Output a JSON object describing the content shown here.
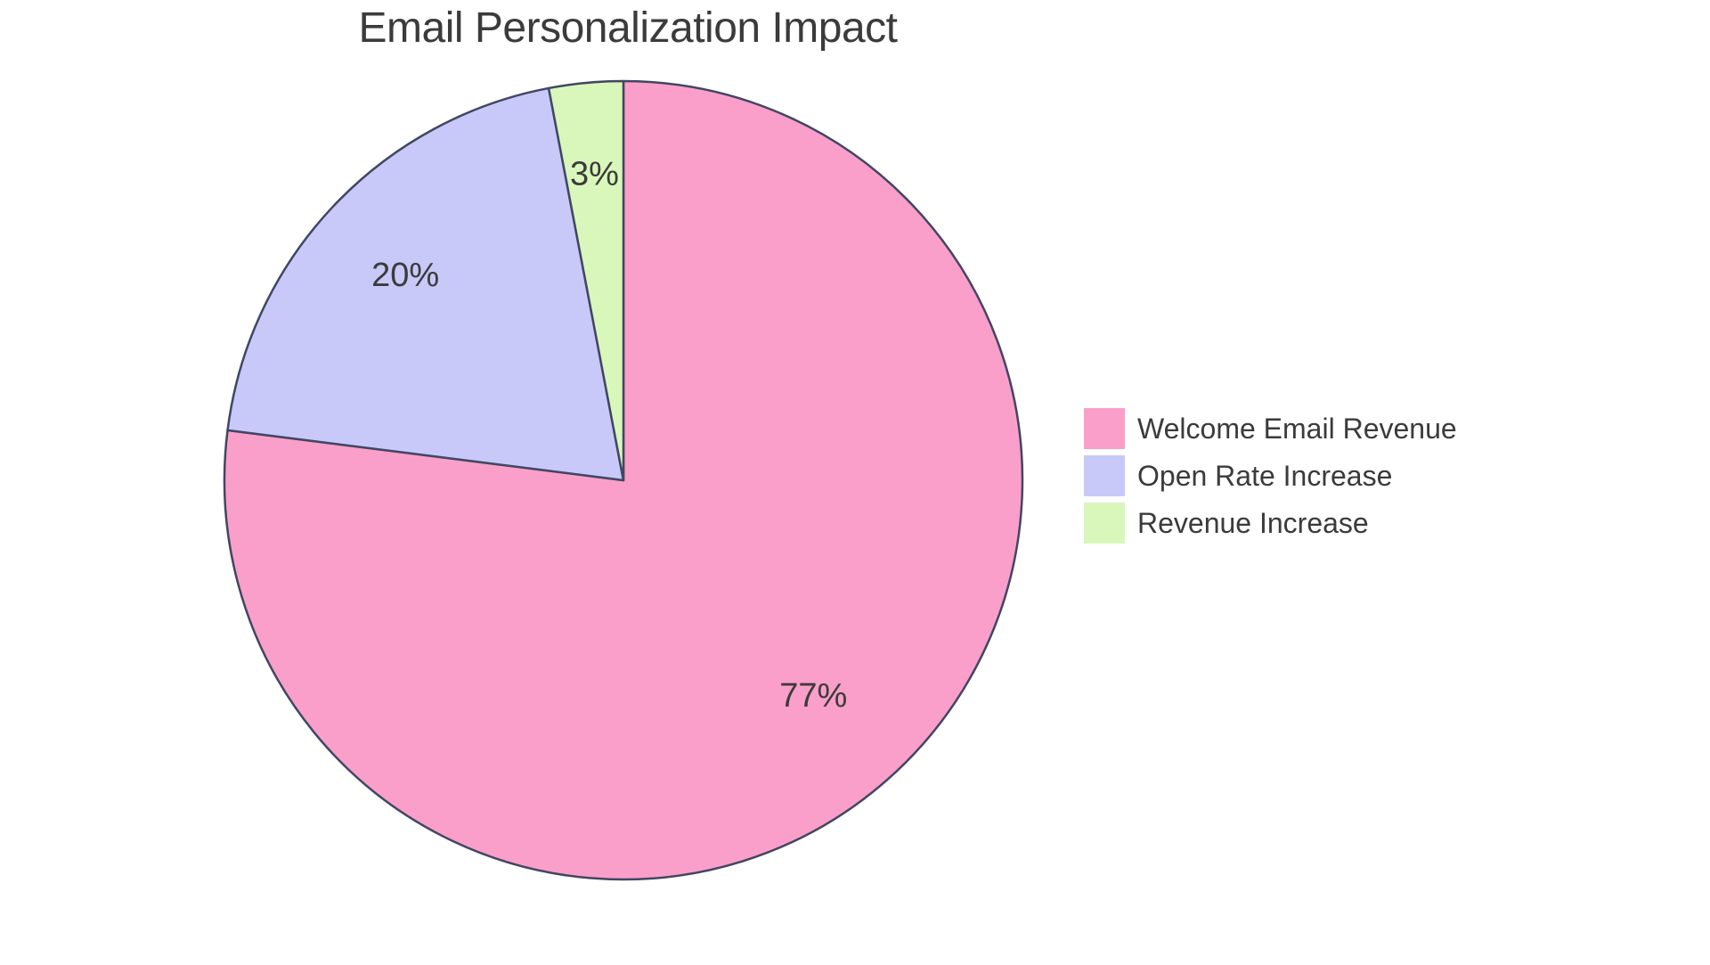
{
  "chart_data": {
    "type": "pie",
    "title": "Email Personalization Impact",
    "categories": [
      "Welcome Email Revenue",
      "Open Rate Increase",
      "Revenue Increase"
    ],
    "values": [
      77,
      20,
      3
    ],
    "slice_labels": [
      "77%",
      "20%",
      "3%"
    ],
    "colors": [
      "#FA9FC9",
      "#C8C9F9",
      "#D9F7BB"
    ],
    "stroke_color": "#414663",
    "label_color": "#3B3B3B",
    "start_angle": "top",
    "direction": "clockwise",
    "legend_position": "right",
    "background": "#FFFFFF"
  },
  "legend": {
    "items": [
      {
        "label": "Welcome Email Revenue",
        "color": "#FA9FC9"
      },
      {
        "label": "Open Rate Increase",
        "color": "#C8C9F9"
      },
      {
        "label": "Revenue Increase",
        "color": "#D9F7BB"
      }
    ]
  }
}
